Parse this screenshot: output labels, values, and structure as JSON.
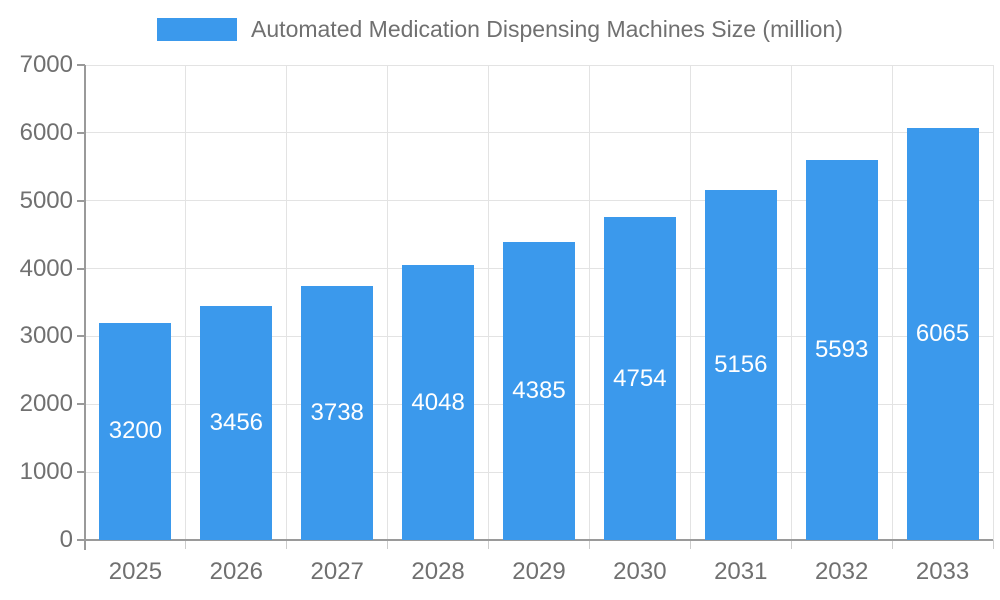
{
  "chart_data": {
    "type": "bar",
    "title": "Automated Medication Dispensing Machines Size (million)",
    "categories": [
      "2025",
      "2026",
      "2027",
      "2028",
      "2029",
      "2030",
      "2031",
      "2032",
      "2033"
    ],
    "values": [
      3200,
      3456,
      3738,
      4048,
      4385,
      4754,
      5156,
      5593,
      6065
    ],
    "xlabel": "",
    "ylabel": "",
    "ylim": [
      0,
      7000
    ],
    "ytick_step": 1000,
    "grid": "on",
    "legend_position": "top",
    "value_labels": "inside-center"
  },
  "colors": {
    "bar": "#3B99EC",
    "axis_text": "#707070",
    "value_label_text": "#ffffff",
    "grid_line": "#e3e3e3",
    "axis_line": "#9a9a9a",
    "minor_tick": "#cccccc",
    "background": "#ffffff"
  }
}
